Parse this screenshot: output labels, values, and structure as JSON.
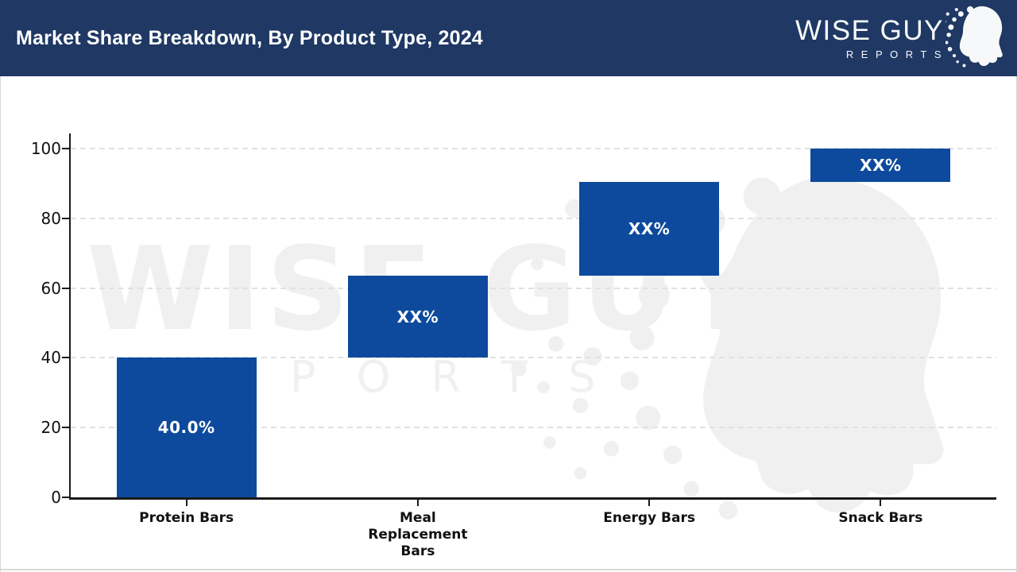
{
  "header": {
    "title": "Market Share Breakdown, By Product Type, 2024",
    "logo": {
      "wordmark": "WISE GUY",
      "subtitle": "REPORTS"
    }
  },
  "watermark": {
    "line1": "WISE GUY",
    "line2": "R E P O R T S"
  },
  "colors": {
    "header_bg": "#1f3864",
    "bar": "#0d4a9d",
    "bar_label": "#ffffff",
    "grid": "#e1e1e1",
    "axis": "#1a1a1a",
    "tick_label": "#111111",
    "watermark": "#f0f0f0",
    "frame": "#d9d9d9"
  },
  "chart_data": {
    "type": "bar",
    "subtype": "waterfall",
    "title": "Market Share Breakdown, By Product Type, 2024",
    "categories": [
      "Protein Bars",
      "Meal Replacement Bars",
      "Energy Bars",
      "Snack Bars"
    ],
    "segments": [
      {
        "category": "Protein Bars",
        "start": 0,
        "end": 40,
        "value": 40.0,
        "label": "40.0%"
      },
      {
        "category": "Meal Replacement Bars",
        "start": 40,
        "end": 63.5,
        "value": 23.5,
        "label": "XX%"
      },
      {
        "category": "Energy Bars",
        "start": 63.5,
        "end": 90.5,
        "value": 27.0,
        "label": "XX%"
      },
      {
        "category": "Snack Bars",
        "start": 90.5,
        "end": 100,
        "value": 9.5,
        "label": "XX%"
      }
    ],
    "yticks": [
      0,
      20,
      40,
      60,
      80,
      100
    ],
    "ylim": [
      0,
      104
    ],
    "xlabel": "",
    "ylabel": "",
    "grid": "horizontal-dashed",
    "legend": false
  }
}
